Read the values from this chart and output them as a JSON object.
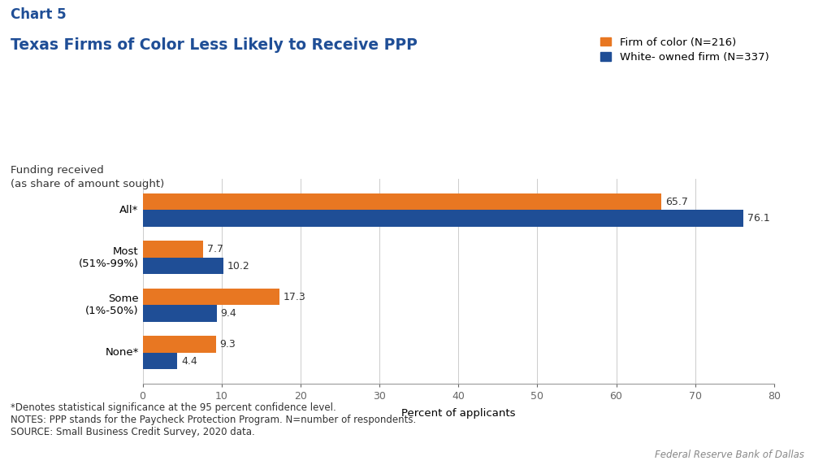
{
  "chart_label": "Chart 5",
  "title": "Texas Firms of Color Less Likely to Receive PPP",
  "y_axis_label_line1": "Funding received",
  "y_axis_label_line2": "(as share of amount sought)",
  "x_axis_label": "Percent of applicants",
  "categories": [
    "All*",
    "Most\n(51%-99%)",
    "Some\n(1%-50%)",
    "None*"
  ],
  "firm_of_color_values": [
    65.7,
    7.7,
    17.3,
    9.3
  ],
  "white_owned_values": [
    76.1,
    10.2,
    9.4,
    4.4
  ],
  "firm_of_color_color": "#E87722",
  "white_owned_color": "#1F4E96",
  "legend_labels": [
    "Firm of color (N=216)",
    "White- owned firm (N=337)"
  ],
  "xlim": [
    0,
    80
  ],
  "xticks": [
    0,
    10,
    20,
    30,
    40,
    50,
    60,
    70,
    80
  ],
  "footnotes": [
    "*Denotes statistical significance at the 95 percent confidence level.",
    "NOTES: PPP stands for the Paycheck Protection Program. N=number of respondents.",
    "SOURCE: Small Business Credit Survey, 2020 data."
  ],
  "source_credit": "Federal Reserve Bank of Dallas",
  "bar_height": 0.35,
  "background_color": "#FFFFFF",
  "title_color": "#1F4E96",
  "chart_label_color": "#1F4E96",
  "annotation_fontsize": 9,
  "axis_label_fontsize": 9.5,
  "tick_fontsize": 9,
  "footnote_fontsize": 8.5,
  "legend_fontsize": 9.5,
  "title_fontsize": 13.5,
  "chart_label_fontsize": 12
}
